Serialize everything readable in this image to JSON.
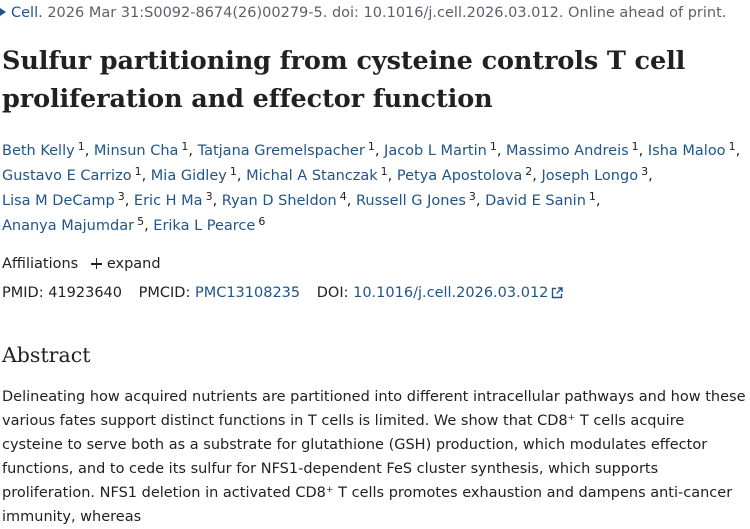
{
  "citation": {
    "journal": "Cell.",
    "details": " 2026 Mar 31:S0092-8674(26)00279-5. doi: 10.1016/j.cell.2026.03.012. Online ahead of print."
  },
  "title": "Sulfur partitioning from cysteine controls T cell proliferation and effector function",
  "authors": [
    {
      "name": "Beth Kelly",
      "aff": "1"
    },
    {
      "name": "Minsun Cha",
      "aff": "1"
    },
    {
      "name": "Tatjana Gremelspacher",
      "aff": "1"
    },
    {
      "name": "Jacob L Martin",
      "aff": "1"
    },
    {
      "name": "Massimo Andreis",
      "aff": "1"
    },
    {
      "name": "Isha Maloo",
      "aff": "1"
    },
    {
      "name": "Gustavo E Carrizo",
      "aff": "1"
    },
    {
      "name": "Mia Gidley",
      "aff": "1"
    },
    {
      "name": "Michal A Stanczak",
      "aff": "1"
    },
    {
      "name": "Petya Apostolova",
      "aff": "2"
    },
    {
      "name": "Joseph Longo",
      "aff": "3"
    },
    {
      "name": "Lisa M DeCamp",
      "aff": "3"
    },
    {
      "name": "Eric H Ma",
      "aff": "3"
    },
    {
      "name": "Ryan D Sheldon",
      "aff": "4"
    },
    {
      "name": "Russell G Jones",
      "aff": "3"
    },
    {
      "name": "David E Sanin",
      "aff": "1"
    },
    {
      "name": "Ananya Majumdar",
      "aff": "5"
    },
    {
      "name": "Erika L Pearce",
      "aff": "6"
    }
  ],
  "affiliations": {
    "label": "Affiliations",
    "expand_label": "expand"
  },
  "ids": {
    "pmid_label": "PMID:",
    "pmid": "41923640",
    "pmcid_label": "PMCID:",
    "pmcid": "PMC13108235",
    "doi_label": "DOI:",
    "doi": "10.1016/j.cell.2026.03.012"
  },
  "abstract": {
    "heading": "Abstract",
    "text": "Delineating how acquired nutrients are partitioned into different intracellular pathways and how these various fates support distinct functions in T cells is limited. We show that CD8⁺ T cells acquire cysteine to serve both as a substrate for glutathione (GSH) production, which modulates effector functions, and to cede its sulfur for NFS1-dependent FeS cluster synthesis, which supports proliferation. NFS1 deletion in activated CD8⁺ T cells promotes exhaustion and dampens anti-cancer immunity, whereas"
  },
  "colors": {
    "link": "#20558a",
    "text": "#212121",
    "muted": "#5b616b"
  },
  "icons": {
    "journal_caret": "caret-right-icon",
    "affiliations_expand": "plus-icon",
    "doi_external": "external-link-icon"
  }
}
